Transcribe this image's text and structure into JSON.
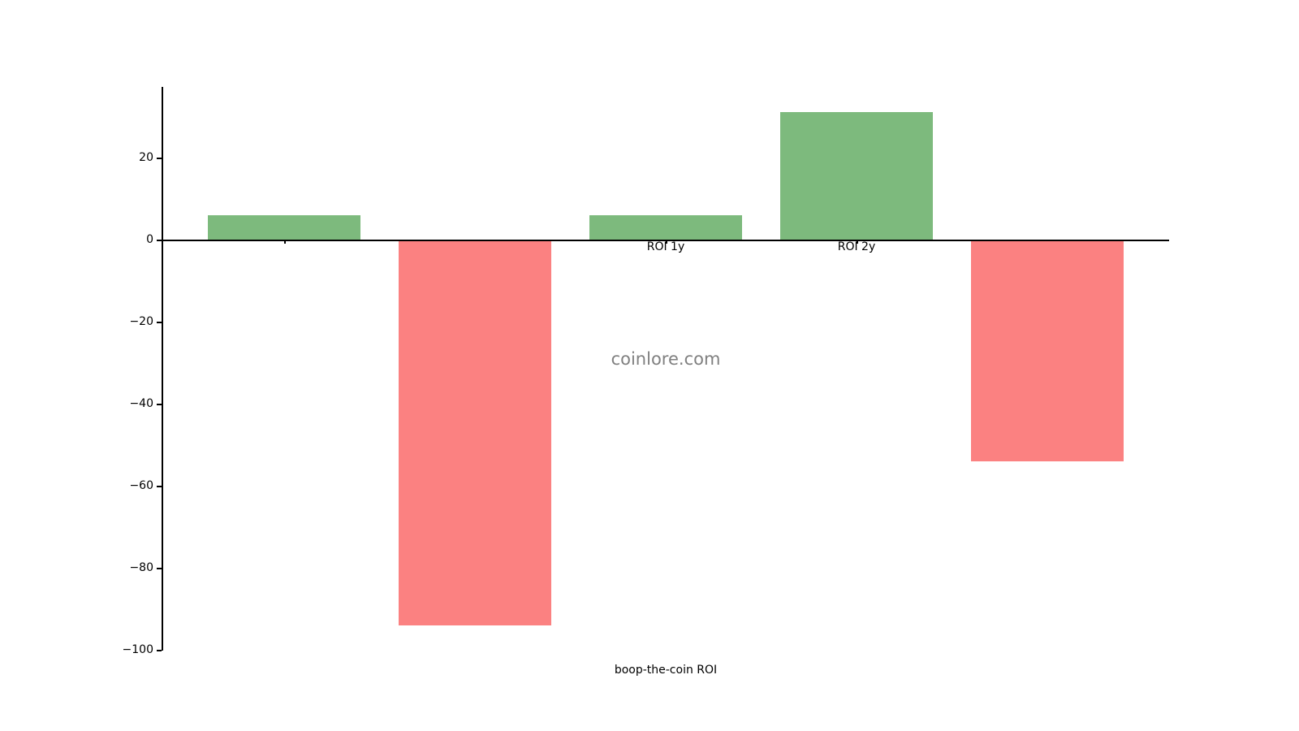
{
  "page": {
    "background": "#ffffff"
  },
  "chart_data": {
    "type": "bar",
    "title": "",
    "xlabel": "boop-the-coin ROI",
    "ylabel": "",
    "watermark": "coinlore.com",
    "categories": [
      "",
      "",
      "ROI 1y",
      "ROI 2y",
      ""
    ],
    "values": [
      6,
      -94,
      6,
      31,
      -54
    ],
    "bar_signs": [
      "positive",
      "negative",
      "positive",
      "positive",
      "negative"
    ],
    "colors": {
      "positive": "#7dba7d",
      "negative": "#fb8181",
      "axis": "#000000",
      "tick_text": "#000000",
      "watermark": "#808080"
    },
    "yticks": [
      {
        "value": 20,
        "label": "20"
      },
      {
        "value": 0,
        "label": "0"
      },
      {
        "value": -20,
        "label": "−20"
      },
      {
        "value": -40,
        "label": "−40"
      },
      {
        "value": -60,
        "label": "−60"
      },
      {
        "value": -80,
        "label": "−80"
      },
      {
        "value": -100,
        "label": "−100"
      }
    ],
    "ylim": [
      -100.25,
      37.25
    ],
    "grid": false,
    "legend": null
  }
}
